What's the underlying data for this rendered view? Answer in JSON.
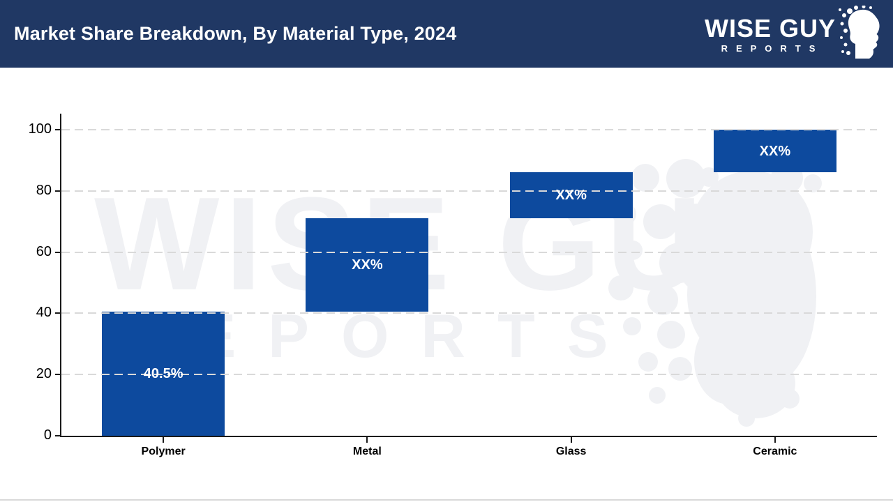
{
  "header": {
    "title": "Market Share Breakdown, By Material Type, 2024",
    "logo": {
      "line1": "WISE GUY",
      "line2": "REPORTS"
    }
  },
  "watermark": {
    "line1": "WISE GUY",
    "line2": "REPORTS"
  },
  "chart_data": {
    "type": "bar",
    "subtype": "waterfall",
    "title": "Market Share Breakdown, By Material Type, 2024",
    "categories": [
      "Polymer",
      "Metal",
      "Glass",
      "Ceramic"
    ],
    "segments": [
      {
        "category": "Polymer",
        "start": 0,
        "end": 40.5,
        "label": "40.5%"
      },
      {
        "category": "Metal",
        "start": 40.5,
        "end": 71,
        "label": "XX%"
      },
      {
        "category": "Glass",
        "start": 71,
        "end": 86,
        "label": "XX%"
      },
      {
        "category": "Ceramic",
        "start": 86,
        "end": 100,
        "label": "XX%"
      }
    ],
    "xlabel": "",
    "ylabel": "",
    "ylim": [
      0,
      100
    ],
    "yticks": [
      0,
      20,
      40,
      60,
      80,
      100
    ],
    "grid": "horizontal dashed, drawn above bars",
    "legend": "none"
  },
  "colors": {
    "header_bg": "#203864",
    "bar": "#0d4a9e",
    "bar_label": "#ffffff",
    "grid_line": "#d9d9d9",
    "axis": "#1a1a1a",
    "watermark": "#f0f1f4"
  }
}
